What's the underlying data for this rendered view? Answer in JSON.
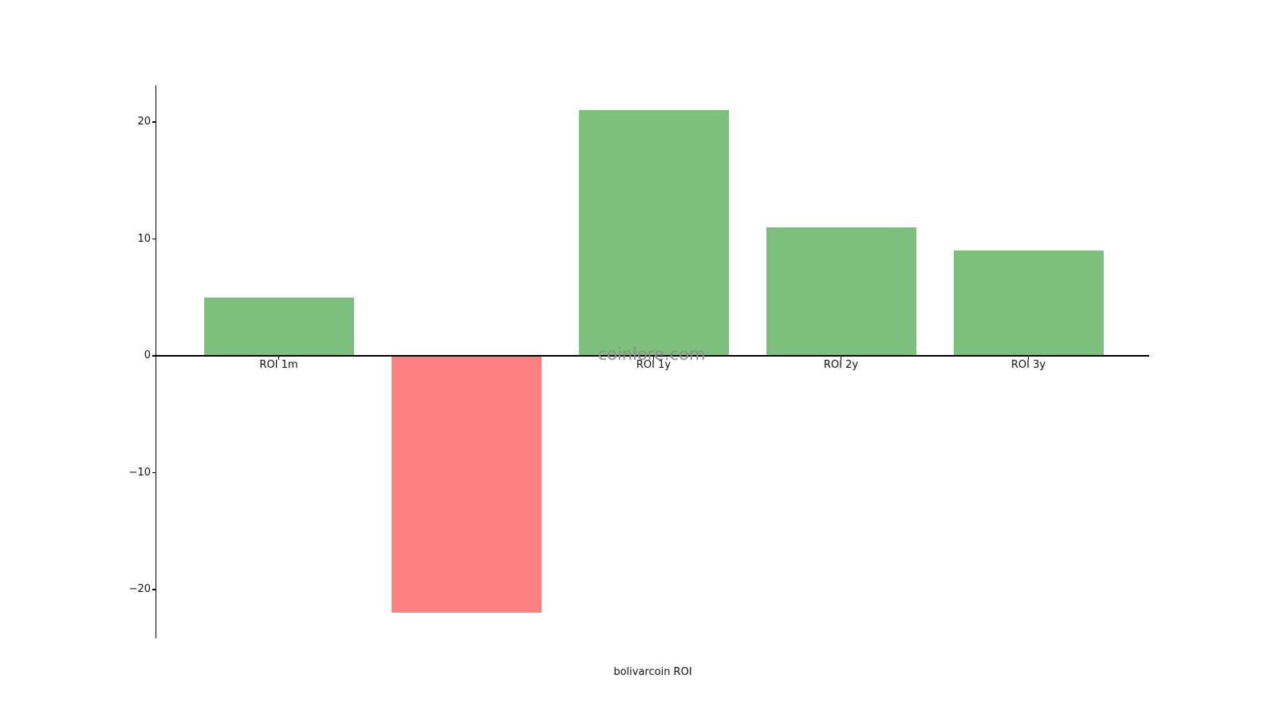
{
  "chart_data": {
    "type": "bar",
    "title": "",
    "xlabel": "bolivarcoin ROI",
    "ylabel": "",
    "categories": [
      "ROI 1m",
      "",
      "ROI 1y",
      "ROI 2y",
      "ROI 3y"
    ],
    "values": [
      5,
      -22,
      21,
      11,
      9
    ],
    "positive_color": "#7dc07d",
    "negative_color": "#ff8080",
    "y_ticks": [
      20,
      10,
      0,
      -10,
      -20
    ],
    "y_tick_labels": [
      "20",
      "10",
      "0",
      "−10",
      "−20"
    ],
    "ylim": [
      -24.2,
      23.2
    ],
    "grid": false,
    "legend_position": "none",
    "axis_color": "#000000",
    "text_color": "#111111"
  },
  "watermark": {
    "text": "coinlore.com",
    "color": "#8f8f8f"
  }
}
